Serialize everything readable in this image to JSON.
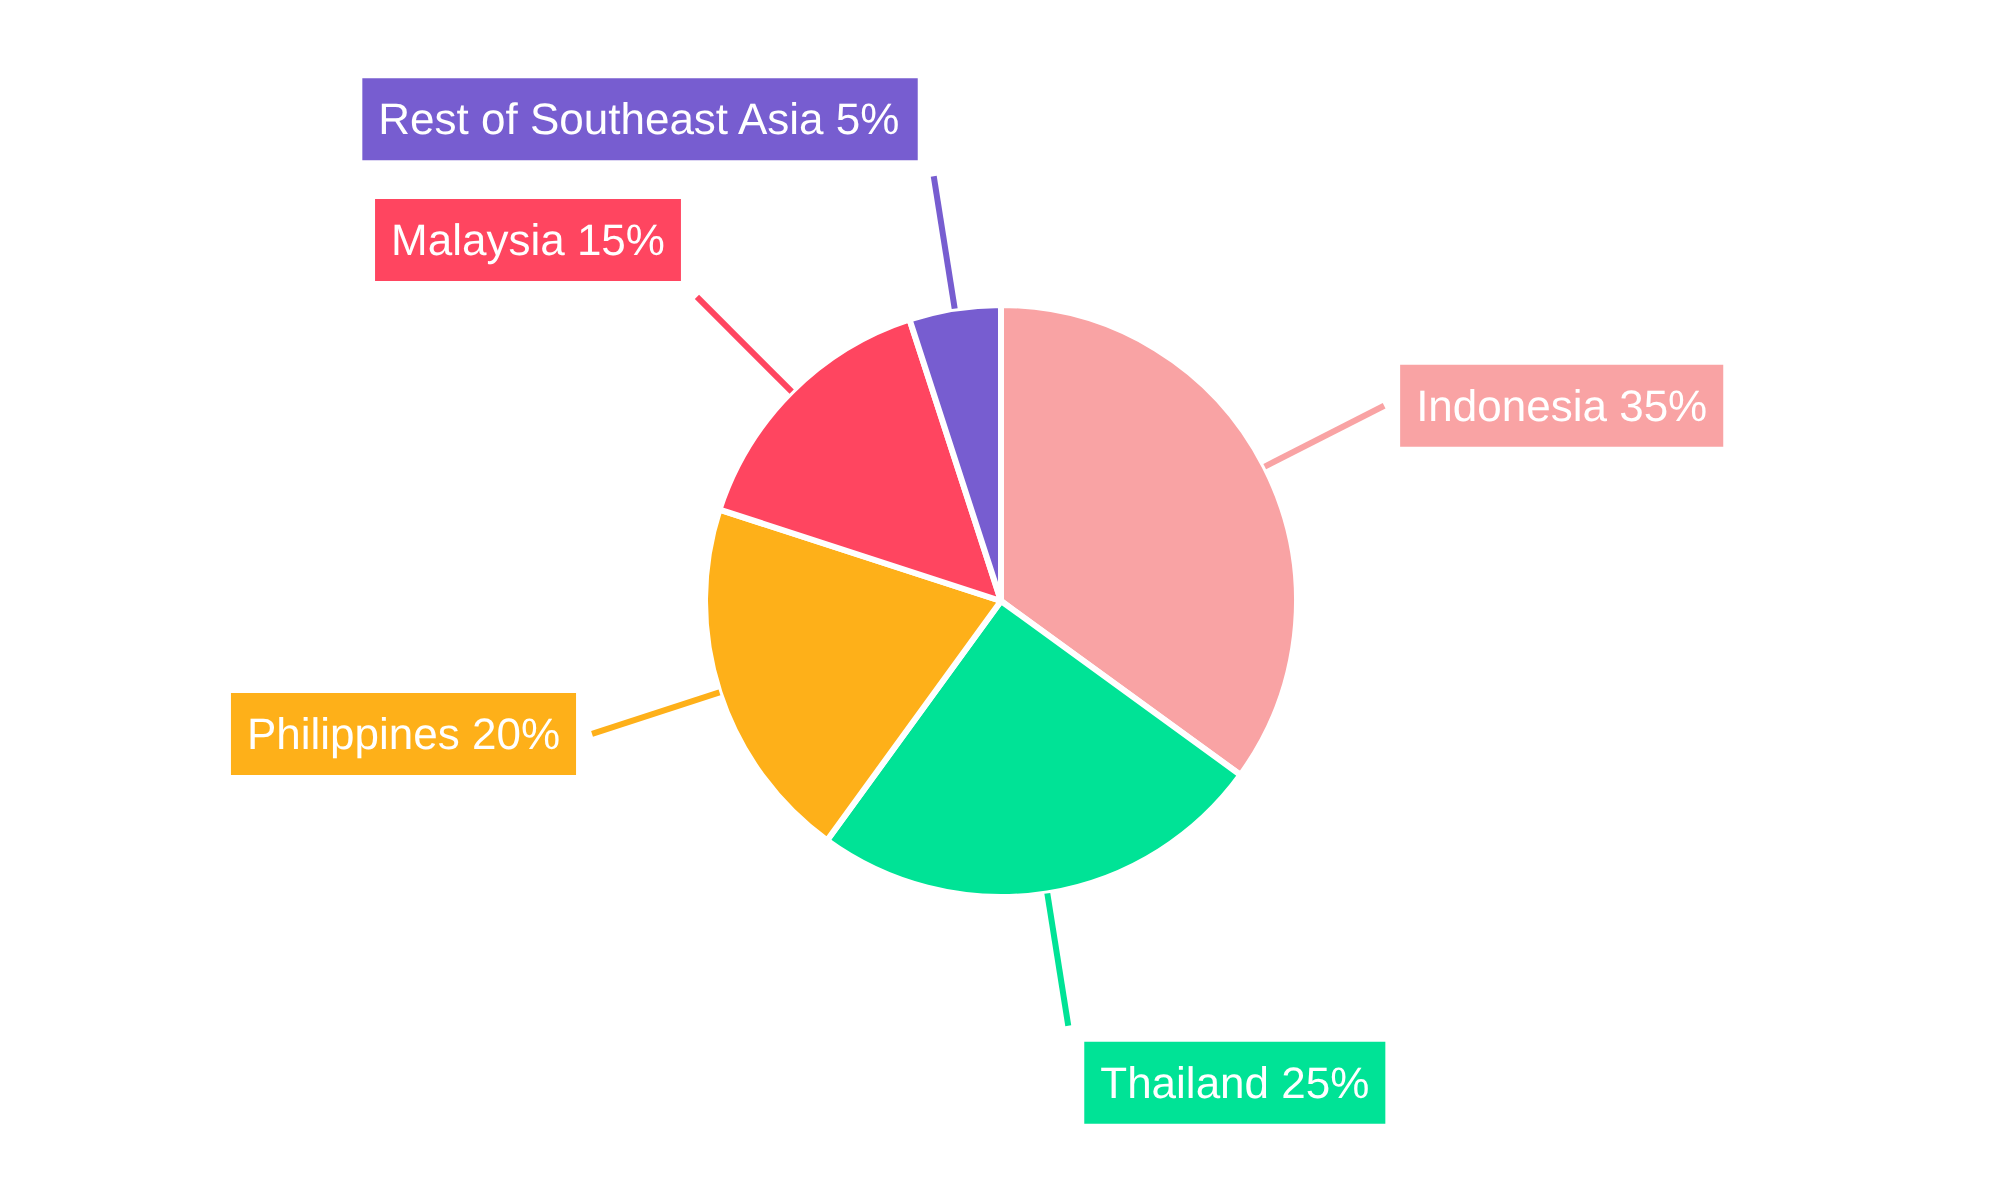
{
  "chart_data": {
    "type": "pie",
    "categories": [
      "Indonesia",
      "Thailand",
      "Philippines",
      "Malaysia",
      "Rest of Southeast Asia"
    ],
    "values": [
      35,
      25,
      20,
      15,
      5
    ],
    "colors": [
      "#f9a3a4",
      "#00e396",
      "#feb019",
      "#ff4560",
      "#775dd0"
    ],
    "value_labels": [
      "35%",
      "25%",
      "20%",
      "15%",
      "5%"
    ]
  }
}
